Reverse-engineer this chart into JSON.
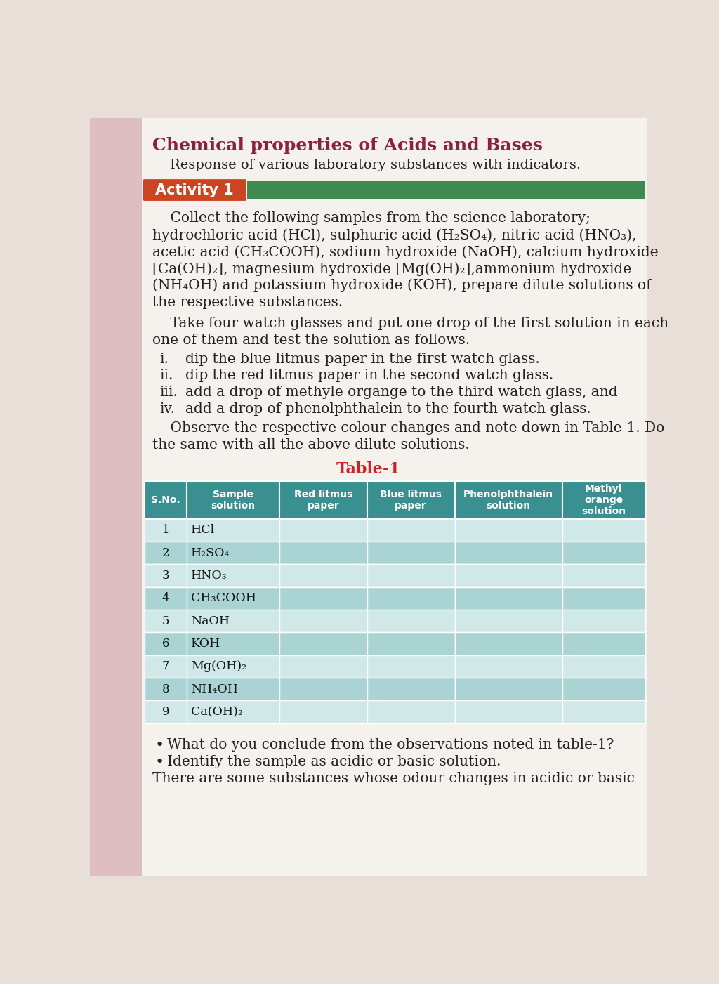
{
  "title": "Chemical properties of Acids and Bases",
  "subtitle": "    Response of various laboratory substances with indicators.",
  "activity_label": "Activity 1",
  "activity_bar_color": "#3e8a50",
  "activity_btn_color": "#cc4422",
  "body_para1": [
    "    Collect the following samples from the science laboratory;",
    "hydrochloric acid (HCl), sulphuric acid (H₂SO₄), nitric acid (HNO₃),",
    "acetic acid (CH₃COOH), sodium hydroxide (NaOH), calcium hydroxide",
    "[Ca(OH)₂], magnesium hydroxide [Mg(OH)₂],ammonium hydroxide",
    "(NH₄OH) and potassium hydroxide (KOH), prepare dilute solutions of",
    "the respective substances."
  ],
  "body_para2": [
    "    Take four watch glasses and put one drop of the first solution in each",
    "one of them and test the solution as follows."
  ],
  "list_items": [
    [
      "i.",
      "dip the blue litmus paper in the first watch glass."
    ],
    [
      "ii.",
      "dip the red litmus paper in the second watch glass."
    ],
    [
      "iii.",
      "add a drop of methyle organge to the third watch glass, and"
    ],
    [
      "iv.",
      "add a drop of phenolphthalein to the fourth watch glass."
    ]
  ],
  "observe_text": [
    "    Observe the respective colour changes and note down in Table-1. Do",
    "the same with all the above dilute solutions."
  ],
  "table_title": "Table-1",
  "table_title_color": "#cc2222",
  "table_header_bg": "#3a9090",
  "table_header_text": "#ffffff",
  "table_odd_row_bg": "#d0e8e8",
  "table_even_row_bg": "#aad4d4",
  "table_border_color": "#ffffff",
  "table_headers": [
    "S.No.",
    "Sample\nsolution",
    "Red litmus\npaper",
    "Blue litmus\npaper",
    "Phenolphthalein\nsolution",
    "Methyl\norange\nsolution"
  ],
  "table_rows": [
    [
      "1",
      "HCl",
      "",
      "",
      "",
      ""
    ],
    [
      "2",
      "H₂SO₄",
      "",
      "",
      "",
      ""
    ],
    [
      "3",
      "HNO₃",
      "",
      "",
      "",
      ""
    ],
    [
      "4",
      "CH₃COOH",
      "",
      "",
      "",
      ""
    ],
    [
      "5",
      "NaOH",
      "",
      "",
      "",
      ""
    ],
    [
      "6",
      "KOH",
      "",
      "",
      "",
      ""
    ],
    [
      "7",
      "Mg(OH)₂",
      "",
      "",
      "",
      ""
    ],
    [
      "8",
      "NH₄OH",
      "",
      "",
      "",
      ""
    ],
    [
      "9",
      "Ca(OH)₂",
      "",
      "",
      "",
      ""
    ]
  ],
  "footer_bullets": [
    "What do you conclude from the observations noted in table-1?",
    "Identify the sample as acidic or basic solution.",
    "There are some substances whose odour changes in acidic or basic"
  ],
  "page_bg": "#e8e0d8",
  "content_bg": "#f5f2ee",
  "text_color": "#222222",
  "title_color": "#8b2040",
  "left_strip_color": "#c87090",
  "body_font_size": 15,
  "title_font_size": 18
}
